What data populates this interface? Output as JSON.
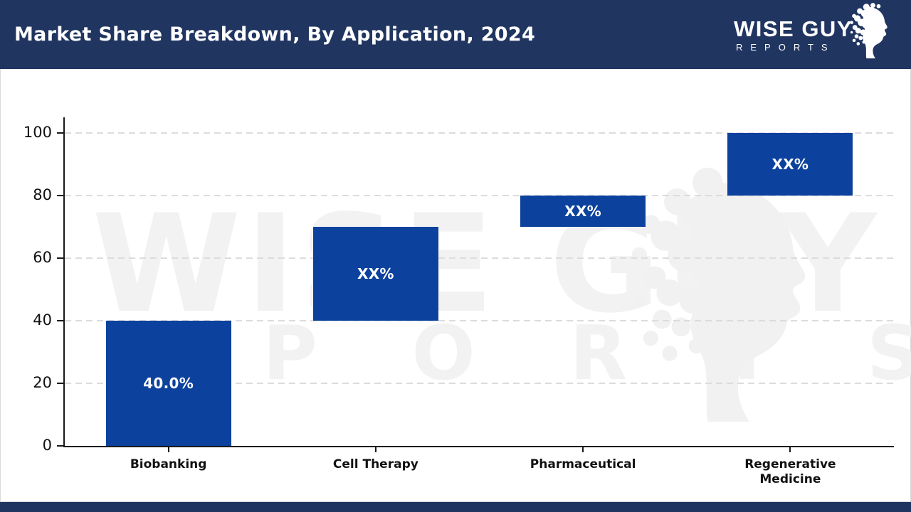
{
  "page": {
    "background": "#ffffff",
    "border_color": "#d9d9d9"
  },
  "header": {
    "bg_color": "#203560",
    "title": "Market Share Breakdown, By Application, 2024",
    "logo": {
      "name": "WISE GUY",
      "sub": "REPORTS"
    }
  },
  "footer": {
    "bg_color": "#203560"
  },
  "watermark": {
    "line1": "WISE GUY",
    "line2": "P O R T S"
  },
  "chart_data": {
    "type": "bar",
    "subtype": "waterfall",
    "title": "Market Share Breakdown, By Application, 2024",
    "categories": [
      "Biobanking",
      "Cell Therapy",
      "Pharmaceutical",
      "Regenerative Medicine"
    ],
    "bars": [
      {
        "category": "Biobanking",
        "start": 0,
        "end": 40,
        "value": 40,
        "label": "40.0%"
      },
      {
        "category": "Cell Therapy",
        "start": 40,
        "end": 70,
        "value": 30,
        "label": "XX%"
      },
      {
        "category": "Pharmaceutical",
        "start": 70,
        "end": 80,
        "value": 10,
        "label": "XX%"
      },
      {
        "category": "Regenerative Medicine",
        "start": 80,
        "end": 100,
        "value": 20,
        "label": "XX%"
      }
    ],
    "ylim": [
      0,
      100
    ],
    "yticks": [
      0,
      20,
      40,
      60,
      80,
      100
    ],
    "xlabel": "",
    "ylabel": "",
    "grid": "horizontal-dashed",
    "legend": "none",
    "bar_color": "#0c429d",
    "bar_label_color": "#ffffff",
    "axis_color": "#1a1a1a",
    "grid_color": "#dcdcdc"
  }
}
